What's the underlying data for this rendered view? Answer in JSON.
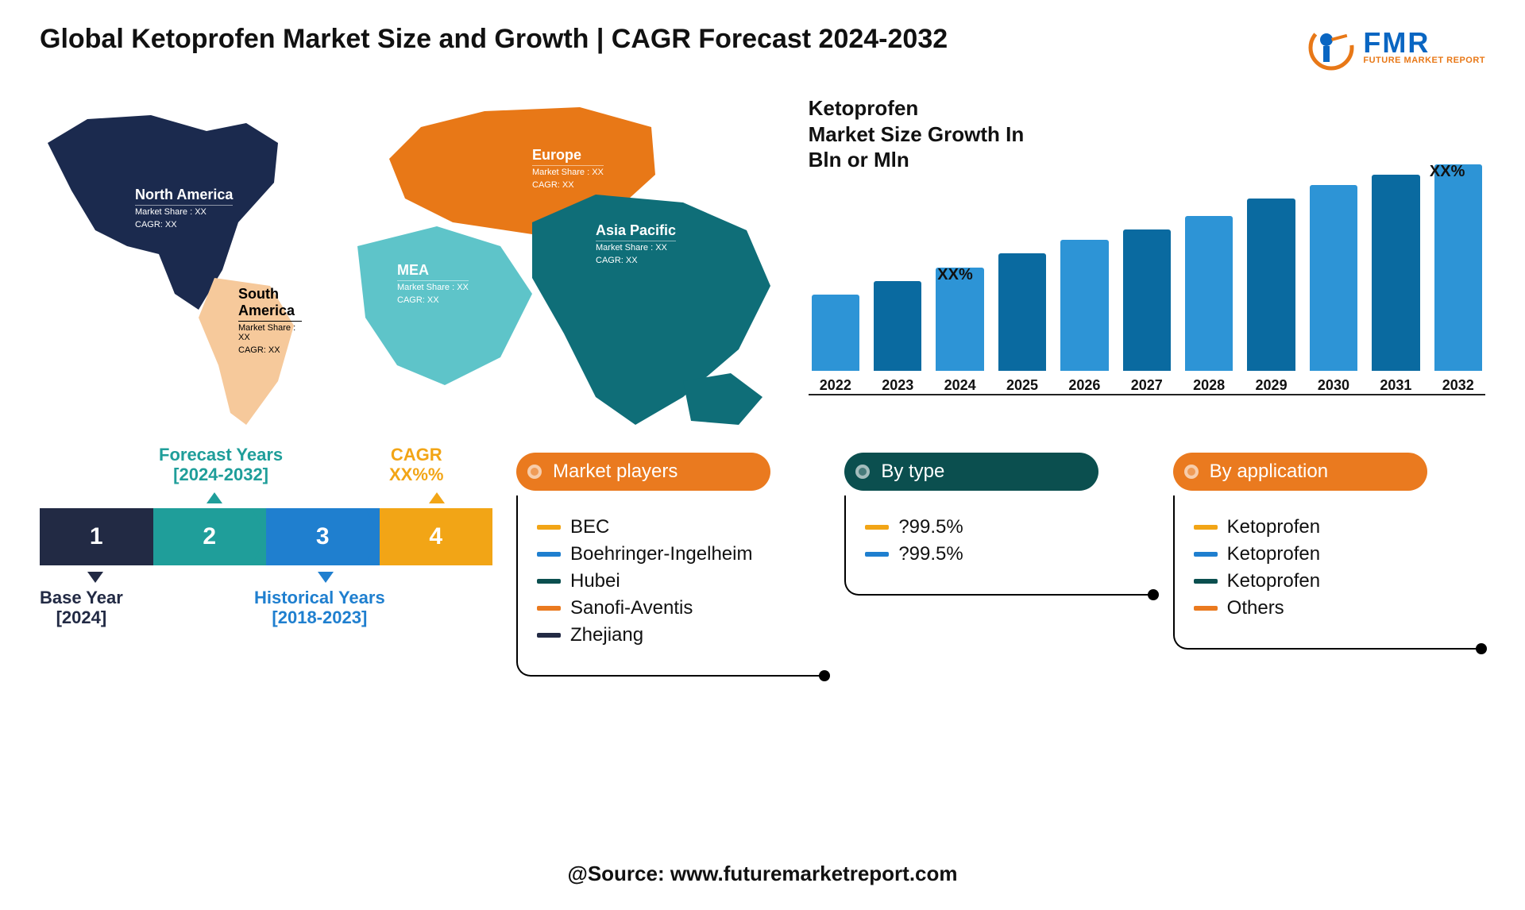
{
  "title": "Global Ketoprofen  Market Size and Growth | CAGR Forecast 2024-2032",
  "logo": {
    "main": "FMR",
    "sub": "FUTURE MARKET REPORT"
  },
  "colors": {
    "navy": "#1b2a4e",
    "orange": "#e87817",
    "teal_dark": "#0f6e78",
    "teal_light": "#5ec4c9",
    "sand": "#f6c99b",
    "blue_bar_light": "#2d94d6",
    "blue_bar_dark": "#0a6aa0",
    "pill_orange": "#ea7a1f",
    "pill_teal": "#0b4f4f",
    "tl_navy": "#222a44",
    "tl_teal": "#1f9e9a",
    "tl_blue": "#1f7fcf",
    "tl_gold": "#f2a516"
  },
  "map": {
    "regions": [
      {
        "key": "na",
        "name": "North America",
        "share": "Market Share : XX",
        "cagr": "CAGR: XX",
        "color": "#1b2a4e"
      },
      {
        "key": "sa",
        "name": "South America",
        "share": "Market Share : XX",
        "cagr": "CAGR: XX",
        "color": "#f6c99b"
      },
      {
        "key": "eu",
        "name": "Europe",
        "share": "Market Share : XX",
        "cagr": "CAGR: XX",
        "color": "#e87817"
      },
      {
        "key": "mea",
        "name": "MEA",
        "share": "Market Share : XX",
        "cagr": "CAGR: XX",
        "color": "#5ec4c9"
      },
      {
        "key": "ap",
        "name": "Asia Pacific",
        "share": "Market Share : XX",
        "cagr": "CAGR: XX",
        "color": "#0f6e78"
      }
    ]
  },
  "chart": {
    "title_l1": "Ketoprofen",
    "title_l2": "Market Size Growth In",
    "title_l3": "Bln or Mln",
    "years": [
      "2022",
      "2023",
      "2024",
      "2025",
      "2026",
      "2027",
      "2028",
      "2029",
      "2030",
      "2031",
      "2032"
    ],
    "values": [
      110,
      130,
      150,
      170,
      190,
      205,
      225,
      250,
      270,
      285,
      300
    ],
    "bar_colors": [
      "#2d94d6",
      "#0a6aa0",
      "#2d94d6",
      "#0a6aa0",
      "#2d94d6",
      "#0a6aa0",
      "#2d94d6",
      "#0a6aa0",
      "#2d94d6",
      "#0a6aa0",
      "#2d94d6"
    ],
    "max": 300,
    "labels": [
      {
        "idx": 2,
        "text": "XX%"
      },
      {
        "idx": 10,
        "text": "XX%"
      }
    ]
  },
  "timeline": {
    "segments": [
      {
        "n": "1",
        "color": "#222a44"
      },
      {
        "n": "2",
        "color": "#1f9e9a"
      },
      {
        "n": "3",
        "color": "#1f7fcf"
      },
      {
        "n": "4",
        "color": "#f2a516"
      }
    ],
    "annots": {
      "base": {
        "l1": "Base Year",
        "l2": "[2024]",
        "color": "#222a44"
      },
      "forecast": {
        "l1": "Forecast Years",
        "l2": "[2024-2032]",
        "color": "#1f9e9a"
      },
      "hist": {
        "l1": "Historical Years",
        "l2": "[2018-2023]",
        "color": "#1f7fcf"
      },
      "cagr": {
        "l1": "CAGR",
        "l2": "XX%%",
        "color": "#f2a516"
      }
    }
  },
  "categories": [
    {
      "title": "Market players",
      "pill_color": "#ea7a1f",
      "items": [
        {
          "t": "BEC",
          "c": "#f2a516"
        },
        {
          "t": "Boehringer-Ingelheim",
          "c": "#1f7fcf"
        },
        {
          "t": "Hubei",
          "c": "#0b4f4f"
        },
        {
          "t": "Sanofi-Aventis",
          "c": "#ea7a1f"
        },
        {
          "t": "Zhejiang",
          "c": "#222a44"
        }
      ]
    },
    {
      "title": "By type",
      "pill_color": "#0b4f4f",
      "items": [
        {
          "t": "?99.5%",
          "c": "#f2a516"
        },
        {
          "t": "?99.5%",
          "c": "#1f7fcf"
        }
      ]
    },
    {
      "title": "By application",
      "pill_color": "#ea7a1f",
      "items": [
        {
          "t": "Ketoprofen",
          "c": "#f2a516"
        },
        {
          "t": "Ketoprofen",
          "c": "#1f7fcf"
        },
        {
          "t": "Ketoprofen",
          "c": "#0b4f4f"
        },
        {
          "t": "Others",
          "c": "#ea7a1f"
        }
      ]
    }
  ],
  "source": "@Source: www.futuremarketreport.com"
}
